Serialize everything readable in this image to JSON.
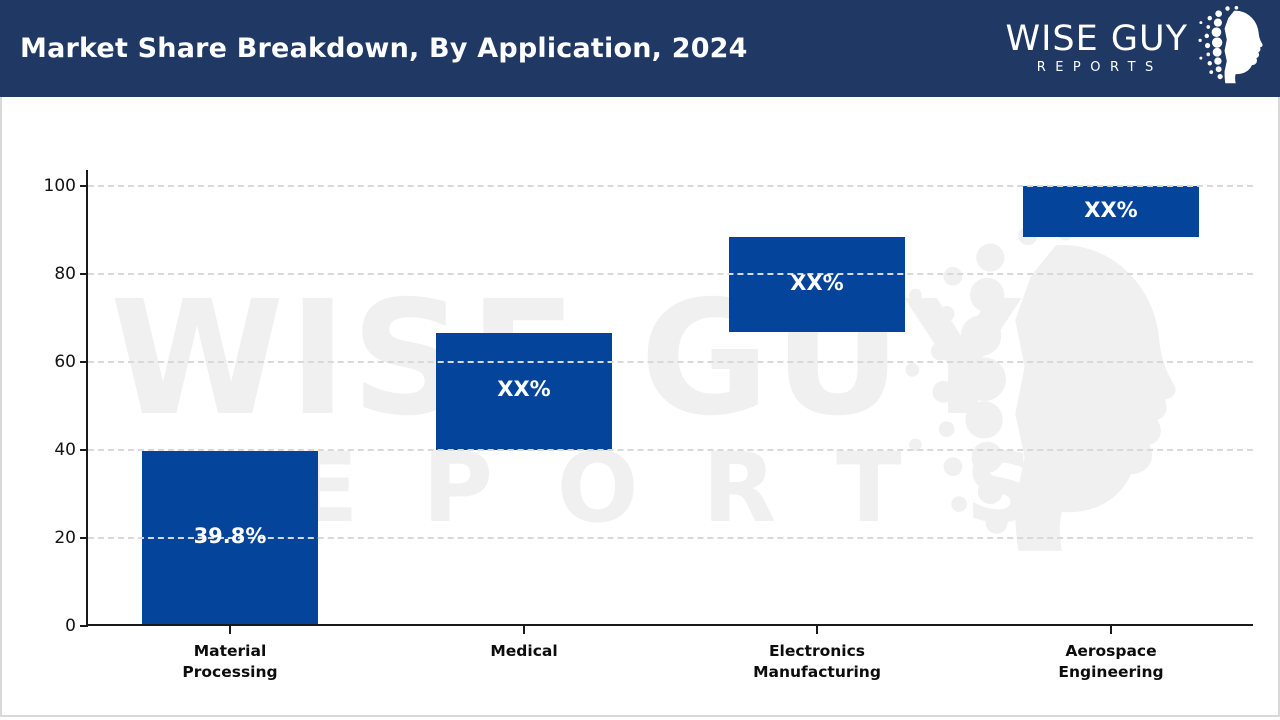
{
  "header": {
    "title": "Market Share Breakdown, By Application, 2024",
    "logo": {
      "wordmark": "WISE GUY",
      "subtext": "REPORTS"
    }
  },
  "watermark": {
    "wordmark": "WISE GUY",
    "subtext": "REPORTS"
  },
  "chart_data": {
    "type": "bar",
    "subtype": "waterfall (floating stacked segments)",
    "title": "Market Share Breakdown, By Application, 2024",
    "categories": [
      "Material Processing",
      "Medical",
      "Electronics Manufacturing",
      "Aerospace Engineering"
    ],
    "segments": [
      {
        "category": "Material Processing",
        "start": 0,
        "end": 39.8,
        "label": "39.8%"
      },
      {
        "category": "Medical",
        "start": 40.1,
        "end": 66.7,
        "label": "XX%"
      },
      {
        "category": "Electronics Manufacturing",
        "start": 66.8,
        "end": 88.4,
        "label": "XX%"
      },
      {
        "category": "Aerospace Engineering",
        "start": 88.5,
        "end": 99.9,
        "label": "XX%"
      }
    ],
    "xlabel": "",
    "ylabel": "",
    "ylim": [
      0,
      100
    ],
    "yticks": [
      0,
      20,
      40,
      60,
      80,
      100
    ],
    "grid": "horizontal dashed gridlines drawn over bars",
    "legend": "none",
    "colors": {
      "bar": "#05449b",
      "bar_label": "#ffffff",
      "axis": "#1a1a1a",
      "gridline": "#d9d9d9",
      "header_bg": "#1f3864",
      "watermark": "#f0f0f1"
    }
  }
}
